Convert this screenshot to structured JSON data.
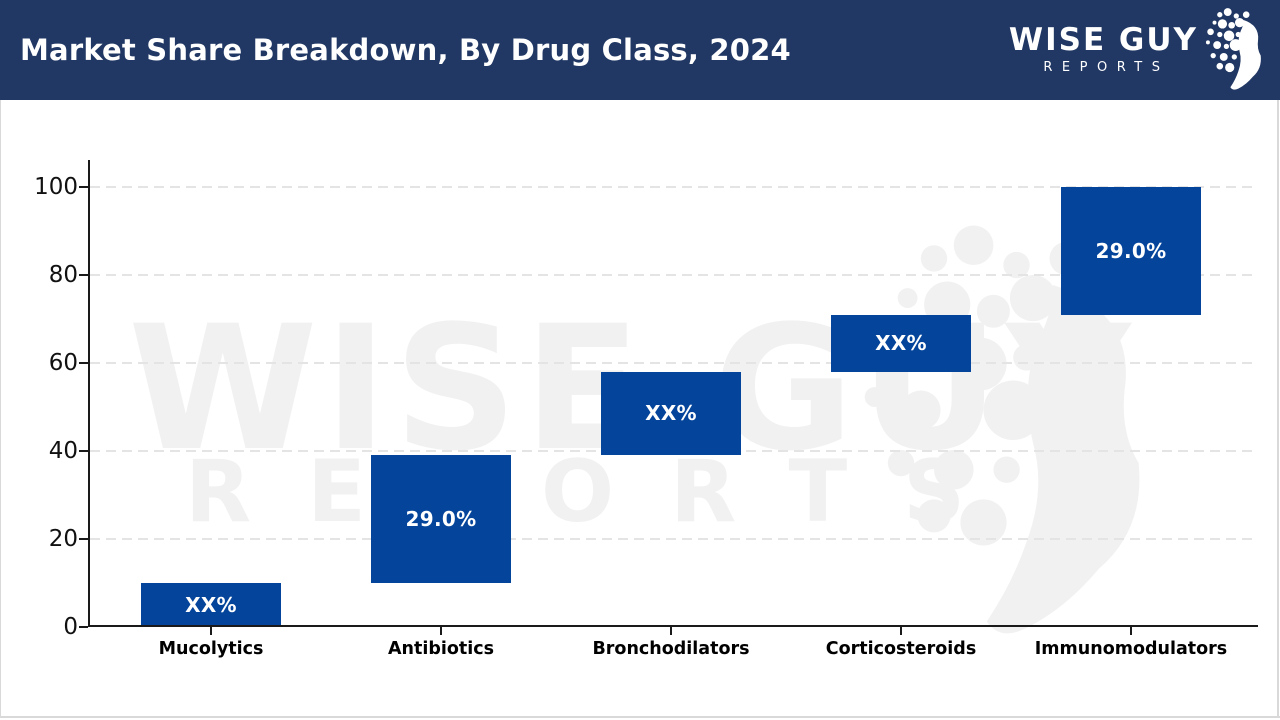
{
  "header": {
    "title": "Market Share Breakdown, By Drug Class, 2024",
    "logo": {
      "line1": "WISE GUY",
      "line2": "REPORTS"
    }
  },
  "watermark": {
    "line1": "WISE GUY",
    "line2": "REPORTS"
  },
  "colors": {
    "header_bg": "#213864",
    "bar": "#04449B",
    "axis": "#1a1a1a",
    "grid": "#e4e4e4",
    "watermark": "#f1f1f1",
    "title_text": "#ffffff",
    "bar_label_text": "#ffffff"
  },
  "chart_data": {
    "type": "bar",
    "subtype": "waterfall",
    "title": "Market Share Breakdown, By Drug Class, 2024",
    "categories": [
      "Mucolytics",
      "Antibiotics",
      "Bronchodilators",
      "Corticosteroids",
      "Immunomodulators"
    ],
    "segments": [
      {
        "category": "Mucolytics",
        "start": 0,
        "end": 10,
        "label": "XX%"
      },
      {
        "category": "Antibiotics",
        "start": 10,
        "end": 39,
        "label": "29.0%"
      },
      {
        "category": "Bronchodilators",
        "start": 39,
        "end": 58,
        "label": "XX%"
      },
      {
        "category": "Corticosteroids",
        "start": 58,
        "end": 71,
        "label": "XX%"
      },
      {
        "category": "Immunomodulators",
        "start": 71,
        "end": 100,
        "label": "29.0%"
      }
    ],
    "y_ticks": [
      0,
      20,
      40,
      60,
      80,
      100
    ],
    "ylim": [
      0,
      106
    ],
    "xlabel": "",
    "ylabel": "",
    "grid": "horizontal-dashed",
    "legend": "none",
    "bar_color": "#04449B"
  }
}
